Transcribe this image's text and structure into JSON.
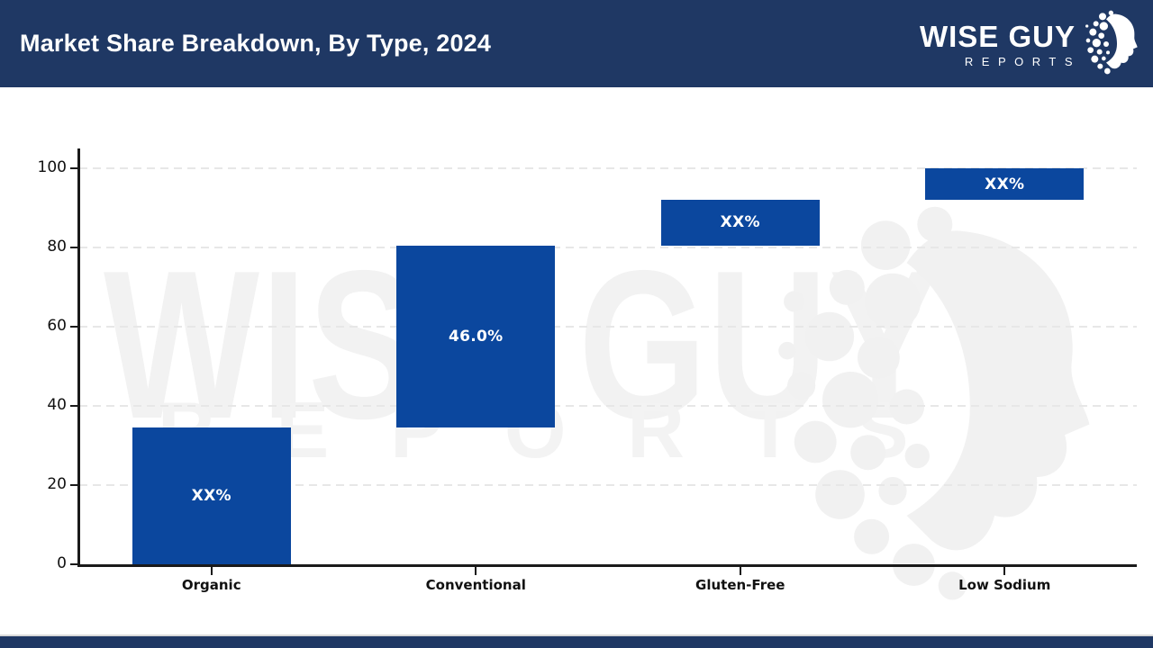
{
  "header": {
    "title": "Market Share Breakdown, By Type, 2024",
    "logo_line1": "WISE GUY",
    "logo_line2": "REPORTS"
  },
  "watermark": {
    "line1": "WISE GUY",
    "line2": "REPORTS"
  },
  "chart_data": {
    "type": "bar",
    "variant": "waterfall",
    "title": "Market Share Breakdown, By Type, 2024",
    "categories": [
      "Organic",
      "Conventional",
      "Gluten-Free",
      "Low Sodium"
    ],
    "segments": [
      {
        "category": "Organic",
        "start": 0,
        "end": 34.5,
        "value": 34.5,
        "label": "XX%"
      },
      {
        "category": "Conventional",
        "start": 34.5,
        "end": 80.5,
        "value": 46.0,
        "label": "46.0%"
      },
      {
        "category": "Gluten-Free",
        "start": 80.5,
        "end": 92,
        "value": 11.5,
        "label": "XX%"
      },
      {
        "category": "Low Sodium",
        "start": 92,
        "end": 100,
        "value": 8,
        "label": "XX%"
      }
    ],
    "yticks": [
      0,
      20,
      40,
      60,
      80,
      100
    ],
    "ylim": [
      0,
      105
    ],
    "xlabel": "",
    "ylabel": "",
    "legend": "none",
    "grid": "horizontal-dashed",
    "bar_color": "#0B479E",
    "bar_label_color": "#FFFFFF",
    "gridline_color": "#E7E7E7",
    "axis_color": "#1A1A1A",
    "header_bg": "#1F3864",
    "footer_bg": "#1F3864"
  }
}
